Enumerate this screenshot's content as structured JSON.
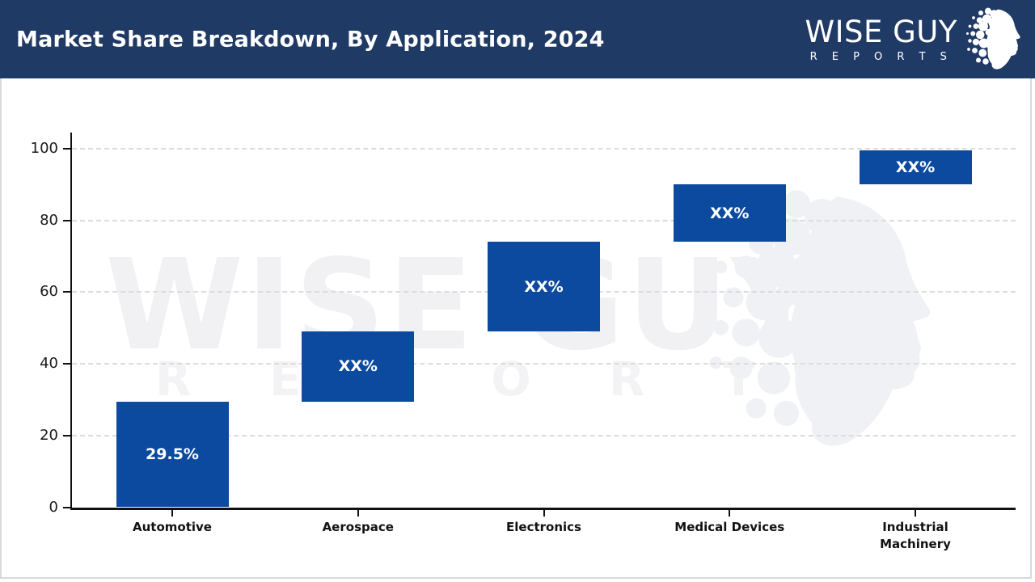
{
  "header": {
    "title": "Market Share Breakdown, By Application, 2024",
    "brand": {
      "line1": "WISE GUY",
      "line2": "R E P O R T S"
    }
  },
  "watermark": {
    "line1": "WISE GUY",
    "line2": "R E P O R T S"
  },
  "colors": {
    "header_bg": "#203a66",
    "bar_blue": "#0b4a9e",
    "grid_gray": "#dcdcdc",
    "axis_black": "#111111",
    "watermark_gray": "#f1f1f3"
  },
  "chart_data": {
    "type": "bar",
    "subtype": "waterfall",
    "title": "Market Share Breakdown, By Application, 2024",
    "categories": [
      "Automotive",
      "Aerospace",
      "Electronics",
      "Medical Devices",
      "Industrial Machinery"
    ],
    "segments": [
      {
        "category": "Automotive",
        "label": "29.5%",
        "start": 0,
        "end": 29.5
      },
      {
        "category": "Aerospace",
        "label": "XX%",
        "start": 29.5,
        "end": 49
      },
      {
        "category": "Electronics",
        "label": "XX%",
        "start": 49,
        "end": 74
      },
      {
        "category": "Medical Devices",
        "label": "XX%",
        "start": 74,
        "end": 90
      },
      {
        "category": "Industrial Machinery",
        "label": "XX%",
        "start": 90,
        "end": 99.5
      }
    ],
    "y_ticks": [
      0,
      20,
      40,
      60,
      80,
      100
    ],
    "ylim": [
      0,
      104
    ],
    "xlabel": "",
    "ylabel": "",
    "grid": "dashed-horizontal",
    "legend": "none",
    "bar_color": "#0b4a9e"
  }
}
